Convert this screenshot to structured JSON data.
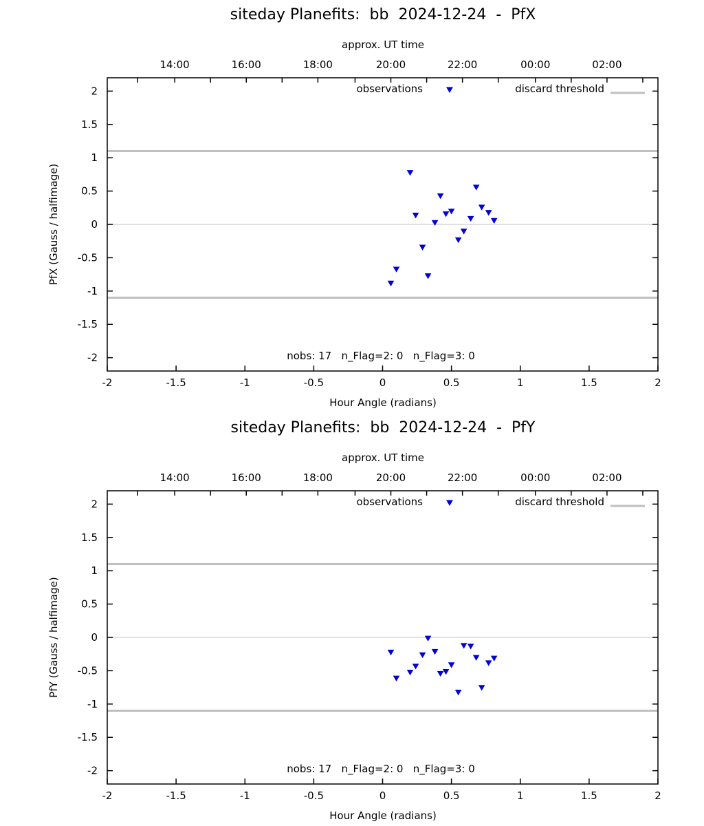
{
  "page": {
    "background": "#ffffff"
  },
  "colors": {
    "marker_blue": "#0000dd",
    "threshold_gray": "#bfbfbf",
    "zero_line_gray": "#d6d6d6",
    "axis_black": "#000000"
  },
  "chart_data": [
    {
      "type": "scatter",
      "title": "siteday Planefits:  bb  2024-12-24  -  PfX",
      "x2label": "approx. UT time",
      "xlabel": "Hour Angle (radians)",
      "ylabel": "PfX (Gauss / halfimage)",
      "xlim": [
        -2,
        2
      ],
      "ylim": [
        -2.2,
        2.2
      ],
      "grid": "off",
      "legend_position": "top-inside",
      "x_ticks": [
        {
          "v": -2,
          "label": "-2"
        },
        {
          "v": -1.5,
          "label": "-1.5"
        },
        {
          "v": -1,
          "label": "-1"
        },
        {
          "v": -0.5,
          "label": "-0.5"
        },
        {
          "v": 0,
          "label": "0"
        },
        {
          "v": 0.5,
          "label": "0.5"
        },
        {
          "v": 1,
          "label": "1"
        },
        {
          "v": 1.5,
          "label": "1.5"
        },
        {
          "v": 2,
          "label": "2"
        }
      ],
      "y_ticks": [
        {
          "v": 2,
          "label": "2"
        },
        {
          "v": 1.5,
          "label": "1.5"
        },
        {
          "v": 1,
          "label": "1"
        },
        {
          "v": 0.5,
          "label": "0.5"
        },
        {
          "v": 0,
          "label": "0"
        },
        {
          "v": -0.5,
          "label": "-0.5"
        },
        {
          "v": -1,
          "label": "-1"
        },
        {
          "v": -1.5,
          "label": "-1.5"
        },
        {
          "v": -2,
          "label": "-2"
        }
      ],
      "x2_ticks": [
        {
          "v": -1.78,
          "label": ""
        },
        {
          "v": -1.51,
          "label": "14:00"
        },
        {
          "v": -1.25,
          "label": ""
        },
        {
          "v": -0.99,
          "label": "16:00"
        },
        {
          "v": -0.73,
          "label": ""
        },
        {
          "v": -0.47,
          "label": "18:00"
        },
        {
          "v": -0.2,
          "label": ""
        },
        {
          "v": 0.06,
          "label": "20:00"
        },
        {
          "v": 0.32,
          "label": ""
        },
        {
          "v": 0.58,
          "label": "22:00"
        },
        {
          "v": 0.84,
          "label": ""
        },
        {
          "v": 1.11,
          "label": "00:00"
        },
        {
          "v": 1.37,
          "label": ""
        },
        {
          "v": 1.63,
          "label": "02:00"
        },
        {
          "v": 1.89,
          "label": ""
        }
      ],
      "series": [
        {
          "name": "observations",
          "marker": "triangle-down",
          "color": "#0000dd",
          "x": [
            0.06,
            0.1,
            0.2,
            0.24,
            0.29,
            0.33,
            0.38,
            0.42,
            0.46,
            0.5,
            0.55,
            0.59,
            0.64,
            0.68,
            0.72,
            0.77,
            0.81
          ],
          "y": [
            -0.88,
            -0.67,
            0.78,
            0.14,
            -0.34,
            -0.77,
            0.03,
            0.43,
            0.16,
            0.2,
            -0.23,
            -0.1,
            0.09,
            0.56,
            0.26,
            0.18,
            0.06
          ]
        }
      ],
      "thresholds": {
        "name": "discard threshold",
        "color": "#bfbfbf",
        "values": [
          1.1,
          -1.1
        ]
      },
      "zero_line": {
        "value": 0,
        "color": "#d6d6d6"
      },
      "annotation": "nobs: 17   n_Flag=2: 0   n_Flag=3: 0"
    },
    {
      "type": "scatter",
      "title": "siteday Planefits:  bb  2024-12-24  -  PfY",
      "x2label": "approx. UT time",
      "xlabel": "Hour Angle (radians)",
      "ylabel": "PfY (Gauss / halfimage)",
      "xlim": [
        -2,
        2
      ],
      "ylim": [
        -2.2,
        2.2
      ],
      "grid": "off",
      "legend_position": "top-inside",
      "x_ticks": [
        {
          "v": -2,
          "label": "-2"
        },
        {
          "v": -1.5,
          "label": "-1.5"
        },
        {
          "v": -1,
          "label": "-1"
        },
        {
          "v": -0.5,
          "label": "-0.5"
        },
        {
          "v": 0,
          "label": "0"
        },
        {
          "v": 0.5,
          "label": "0.5"
        },
        {
          "v": 1,
          "label": "1"
        },
        {
          "v": 1.5,
          "label": "1.5"
        },
        {
          "v": 2,
          "label": "2"
        }
      ],
      "y_ticks": [
        {
          "v": 2,
          "label": "2"
        },
        {
          "v": 1.5,
          "label": "1.5"
        },
        {
          "v": 1,
          "label": "1"
        },
        {
          "v": 0.5,
          "label": "0.5"
        },
        {
          "v": 0,
          "label": "0"
        },
        {
          "v": -0.5,
          "label": "-0.5"
        },
        {
          "v": -1,
          "label": "-1"
        },
        {
          "v": -1.5,
          "label": "-1.5"
        },
        {
          "v": -2,
          "label": "-2"
        }
      ],
      "x2_ticks": [
        {
          "v": -1.78,
          "label": ""
        },
        {
          "v": -1.51,
          "label": "14:00"
        },
        {
          "v": -1.25,
          "label": ""
        },
        {
          "v": -0.99,
          "label": "16:00"
        },
        {
          "v": -0.73,
          "label": ""
        },
        {
          "v": -0.47,
          "label": "18:00"
        },
        {
          "v": -0.2,
          "label": ""
        },
        {
          "v": 0.06,
          "label": "20:00"
        },
        {
          "v": 0.32,
          "label": ""
        },
        {
          "v": 0.58,
          "label": "22:00"
        },
        {
          "v": 0.84,
          "label": ""
        },
        {
          "v": 1.11,
          "label": "00:00"
        },
        {
          "v": 1.37,
          "label": ""
        },
        {
          "v": 1.63,
          "label": "02:00"
        },
        {
          "v": 1.89,
          "label": ""
        }
      ],
      "series": [
        {
          "name": "observations",
          "marker": "triangle-down",
          "color": "#0000dd",
          "x": [
            0.06,
            0.1,
            0.2,
            0.24,
            0.29,
            0.33,
            0.38,
            0.42,
            0.46,
            0.5,
            0.55,
            0.59,
            0.64,
            0.68,
            0.72,
            0.77,
            0.81
          ],
          "y": [
            -0.22,
            -0.61,
            -0.52,
            -0.43,
            -0.26,
            -0.01,
            -0.21,
            -0.54,
            -0.51,
            -0.41,
            -0.82,
            -0.12,
            -0.13,
            -0.3,
            -0.75,
            -0.38,
            -0.31
          ]
        }
      ],
      "thresholds": {
        "name": "discard threshold",
        "color": "#bfbfbf",
        "values": [
          1.1,
          -1.1
        ]
      },
      "zero_line": {
        "value": 0,
        "color": "#d6d6d6"
      },
      "annotation": "nobs: 17   n_Flag=2: 0   n_Flag=3: 0"
    }
  ]
}
